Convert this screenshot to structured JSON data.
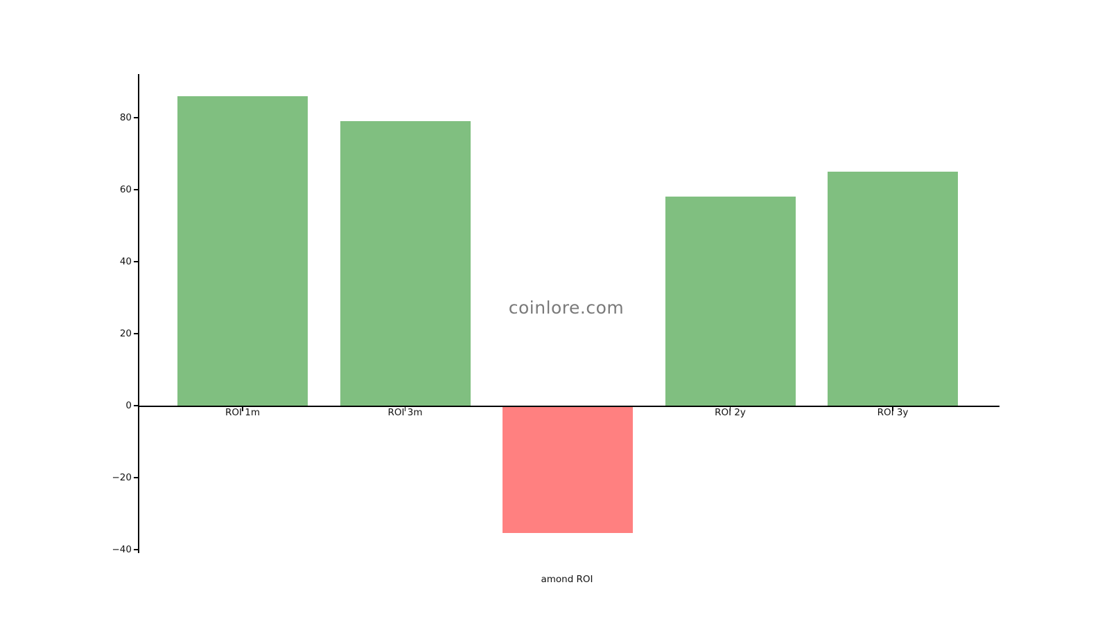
{
  "chart_data": {
    "type": "bar",
    "title": "",
    "xlabel": "amond ROI",
    "ylabel": "",
    "watermark": "coinlore.com",
    "categories": [
      "ROI 1m",
      "ROI 3m",
      "",
      "ROI 2y",
      "ROI 3y"
    ],
    "values": [
      86,
      79,
      -35,
      58,
      65
    ],
    "bar_colors": [
      "#80bf80",
      "#80bf80",
      "#ff8080",
      "#80bf80",
      "#80bf80"
    ],
    "positive_color": "#80bf80",
    "negative_color": "#ff8080",
    "y_ticks": [
      80,
      60,
      40,
      20,
      0,
      -20,
      -40
    ],
    "y_tick_labels": [
      "80",
      "60",
      "40",
      "20",
      "0",
      "−20",
      "−40"
    ],
    "ylim": [
      -41,
      92
    ],
    "grid": false,
    "legend_position": "none",
    "axis_color": "#000000",
    "text_color": "#111111",
    "watermark_color": "#7a7a7a",
    "background": "#ffffff"
  }
}
